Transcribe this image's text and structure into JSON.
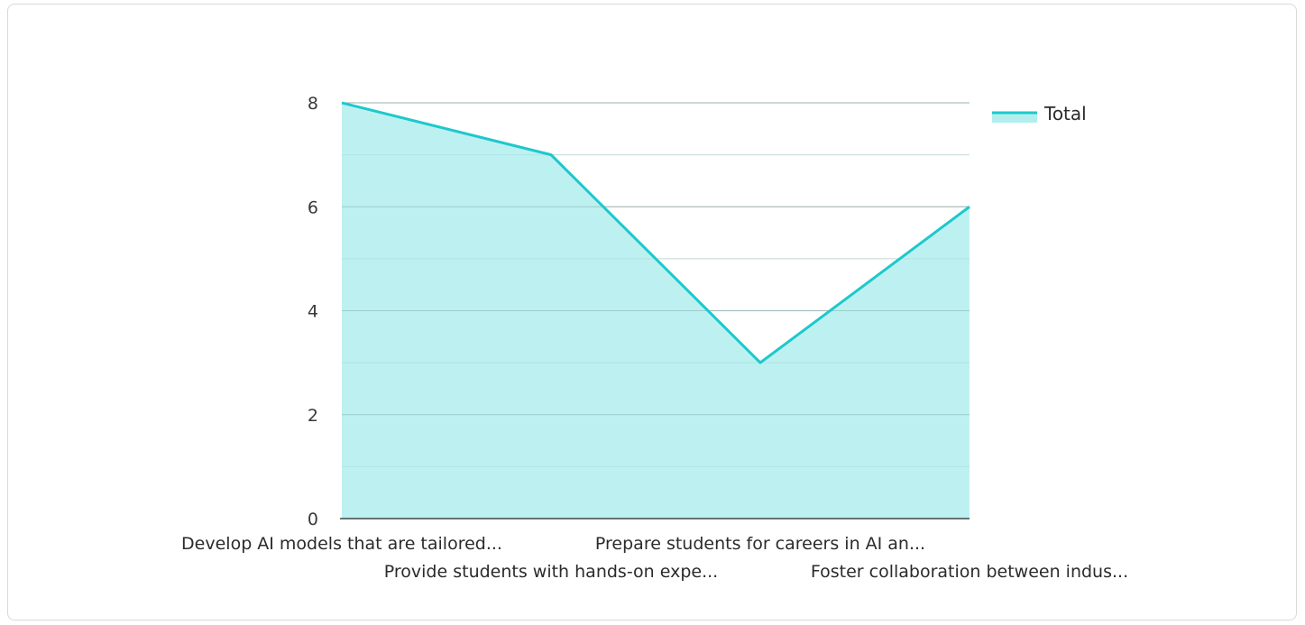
{
  "chart_data": {
    "type": "area",
    "categories": [
      "Develop AI models that are tailored...",
      "Provide students with hands-on expe...",
      "Prepare students for careers in AI an...",
      "Foster collaboration between indus..."
    ],
    "series": [
      {
        "name": "Total",
        "values": [
          8,
          7,
          3,
          6
        ]
      }
    ],
    "ylim": [
      0,
      8
    ],
    "yticks": [
      "0",
      "2",
      "4",
      "6",
      "8"
    ],
    "grid": true,
    "legend_position": "top-right",
    "colors": {
      "line": "#1ec8cc",
      "fill": "#b2eeee",
      "grid_major": "#c8c8c8",
      "grid_minor": "#e6e6e6",
      "axis": "#444444"
    }
  }
}
